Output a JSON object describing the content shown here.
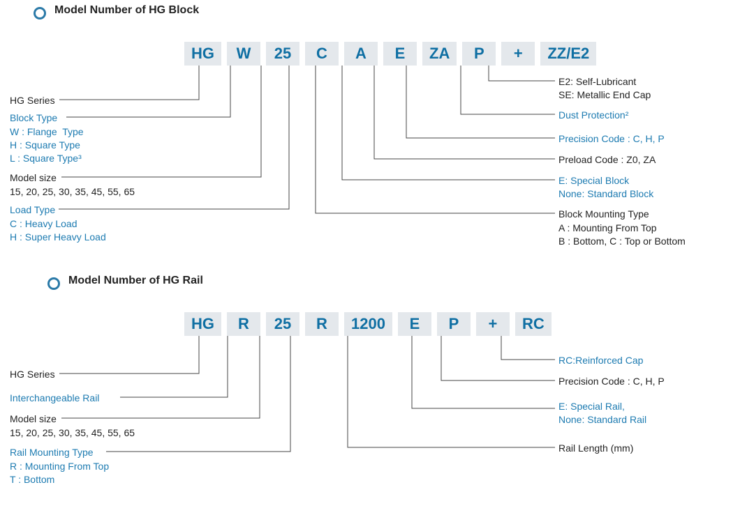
{
  "colors": {
    "accent": "#0f6fa3",
    "bullet": "#2b7aa8",
    "cell_bg": "#e4e8ec",
    "text": "#333",
    "blue_text": "#1d7bb1",
    "line": "#444"
  },
  "font": {
    "family": "Segoe UI",
    "title_size": 16,
    "cell_size": 22,
    "body_size": 14
  },
  "block": {
    "title": "Model Number of HG Block",
    "cells": [
      "HG",
      "W",
      "25",
      "C",
      "A",
      "E",
      "ZA",
      "P",
      "+",
      "ZZ/E2"
    ],
    "left": [
      {
        "k": "hg",
        "title": "HG Series",
        "accent": false,
        "lines": []
      },
      {
        "k": "bt",
        "title": "Block Type",
        "accent": true,
        "lines": [
          "W : Flange  Type",
          "H : Square Type",
          "L : Square Type³"
        ]
      },
      {
        "k": "ms",
        "title": "Model size",
        "accent": false,
        "lines": [
          "15, 20, 25, 30, 35, 45, 55, 65"
        ]
      },
      {
        "k": "lt",
        "title": "Load Type",
        "accent": true,
        "lines": [
          "C : Heavy Load",
          "H : Super Heavy Load"
        ]
      }
    ],
    "right": [
      {
        "k": "e2",
        "title": "",
        "accent": false,
        "lines": [
          "E2: Self-Lubricant",
          "SE: Metallic End Cap"
        ]
      },
      {
        "k": "dp",
        "title": "Dust Protection²",
        "accent": true,
        "lines": []
      },
      {
        "k": "pc",
        "title": "Precision Code : C, H, P",
        "accent": true,
        "lines": []
      },
      {
        "k": "pl",
        "title": "Preload Code : Z0, ZA",
        "accent": false,
        "lines": []
      },
      {
        "k": "sb",
        "title": "",
        "accent": true,
        "lines": [
          "E: Special Block",
          "None: Standard Block"
        ]
      },
      {
        "k": "mt",
        "title": "Block Mounting Type",
        "accent": false,
        "lines": [
          "A : Mounting From Top",
          "B : Bottom, C : Top or Bottom"
        ]
      }
    ]
  },
  "rail": {
    "title": "Model Number of HG Rail",
    "cells": [
      "HG",
      "R",
      "25",
      "R",
      "1200",
      "E",
      "P",
      "+",
      "RC"
    ],
    "left": [
      {
        "k": "hg",
        "title": "HG Series",
        "accent": false,
        "lines": []
      },
      {
        "k": "ir",
        "title": "Interchangeable Rail",
        "accent": true,
        "lines": []
      },
      {
        "k": "ms",
        "title": "Model size",
        "accent": false,
        "lines": [
          "15, 20, 25, 30, 35, 45, 55, 65"
        ]
      },
      {
        "k": "rm",
        "title": "Rail Mounting Type",
        "accent": true,
        "lines": [
          "R : Mounting From Top",
          "T : Bottom"
        ]
      }
    ],
    "right": [
      {
        "k": "rc",
        "title": "RC:Reinforced Cap",
        "accent": true,
        "lines": []
      },
      {
        "k": "pc",
        "title": "Precision Code : C, H, P",
        "accent": false,
        "lines": []
      },
      {
        "k": "sr",
        "title": "",
        "accent": true,
        "lines": [
          "E: Special Rail,",
          "None: Standard Rail"
        ]
      },
      {
        "k": "rl",
        "title": "Rail Length (mm)",
        "accent": false,
        "lines": []
      }
    ]
  }
}
